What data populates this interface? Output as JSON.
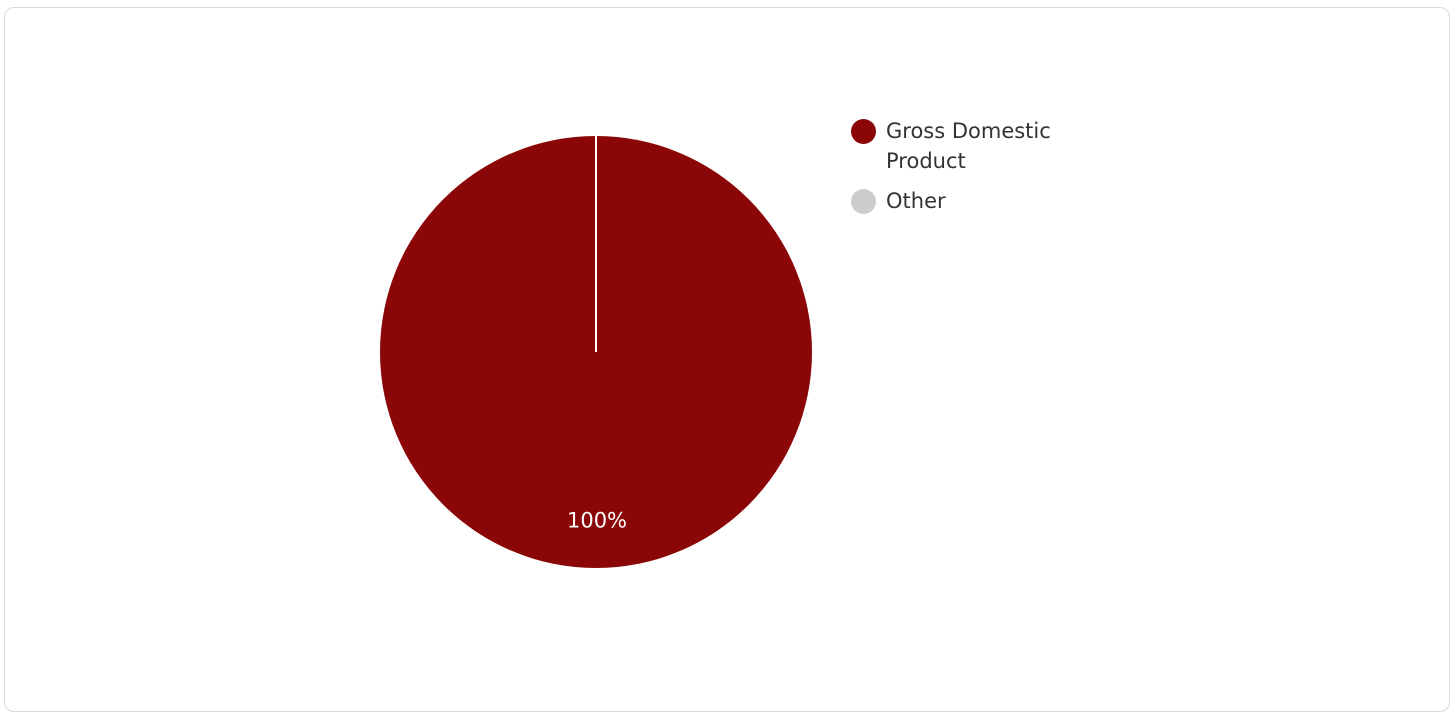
{
  "chart_data": {
    "type": "pie",
    "title": "",
    "slices": [
      {
        "name": "Gross Domestic Product",
        "value": 100,
        "label": "100%",
        "color": "#8b0707"
      },
      {
        "name": "Other",
        "value": 0,
        "label": "",
        "color": "#cccccc"
      }
    ],
    "legend_position": "right",
    "slice_border_color": "#ffffff"
  }
}
